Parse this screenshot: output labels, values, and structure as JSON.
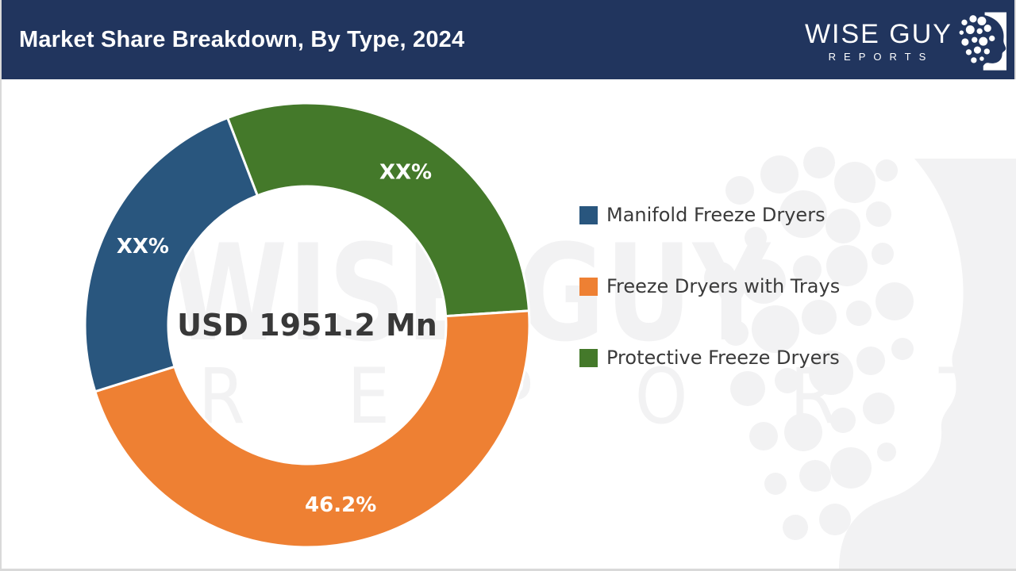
{
  "header": {
    "title": "Market Share Breakdown, By Type, 2024",
    "logo": {
      "line1": "WISE GUY",
      "line2": "REPORTS"
    }
  },
  "watermark": {
    "line1": "WISE GUY",
    "line2": "R E P O R T S"
  },
  "chart_data": {
    "type": "pie",
    "subtype": "donut",
    "title": "Market Share Breakdown, By Type, 2024",
    "center_label": "USD 1951.2 Mn",
    "inner_radius_ratio": 0.625,
    "start_angle_deg_clockwise_from_top": -21,
    "legend_position": "right",
    "segments": [
      {
        "name": "Protective Freeze Dryers",
        "label": "XX%",
        "value_pct": 29.8,
        "color": "#44792a"
      },
      {
        "name": "Freeze Dryers with Trays",
        "label": "46.2%",
        "value_pct": 46.2,
        "color": "#ee8033"
      },
      {
        "name": "Manifold Freeze Dryers",
        "label": "XX%",
        "value_pct": 24.0,
        "color": "#29567e"
      }
    ],
    "legend": [
      {
        "label": "Manifold Freeze Dryers",
        "color": "#29567e"
      },
      {
        "label": "Freeze Dryers with Trays",
        "color": "#ee8033"
      },
      {
        "label": "Protective Freeze Dryers",
        "color": "#44792a"
      }
    ]
  },
  "colors": {
    "header_bg": "#21355e",
    "center_text": "#383838",
    "legend_text": "#3a3a3a",
    "watermark": "#f2f2f3",
    "slice_gap": "#ffffff"
  }
}
